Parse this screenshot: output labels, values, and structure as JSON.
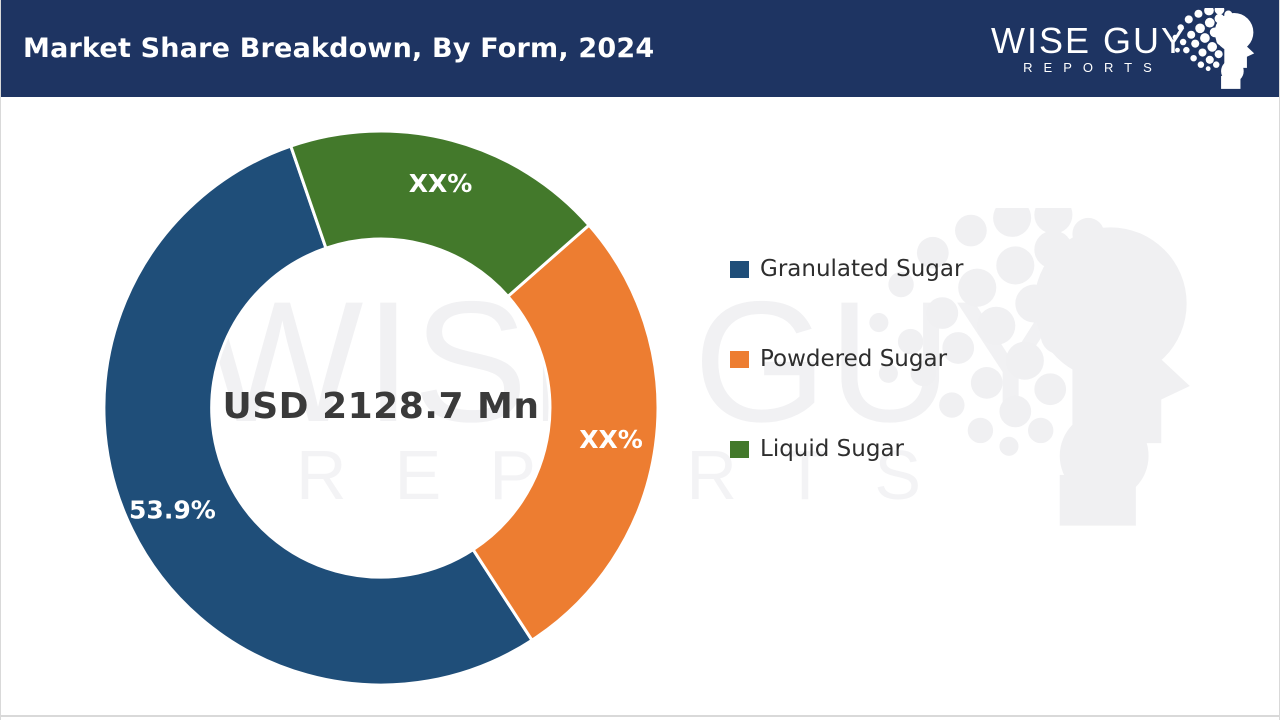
{
  "header": {
    "title": "Market Share Breakdown, By Form, 2024",
    "logo": {
      "line1": "WISE GUY",
      "line2": "REPORTS"
    }
  },
  "watermark": {
    "line1": "WISE GUY",
    "line2": "REPORTS"
  },
  "chart_data": {
    "type": "pie",
    "variant": "donut",
    "title": "Market Share Breakdown, By Form, 2024",
    "center_label": "USD 2128.7 Mn",
    "start_angle_deg": 109,
    "direction": "counterclockwise",
    "inner_radius_ratio": 0.61,
    "label_radius_ratio": 0.838,
    "legend_position": "right",
    "segments": [
      {
        "name": "Granulated Sugar",
        "value": 53.9,
        "label": "53.9%",
        "color": "#1F4E79"
      },
      {
        "name": "Powdered Sugar",
        "value": 27.3,
        "label": "XX%",
        "color": "#ED7D31"
      },
      {
        "name": "Liquid Sugar",
        "value": 18.8,
        "label": "XX%",
        "color": "#43792B"
      }
    ]
  },
  "colors": {
    "header_bg": "#1E3462",
    "page_bg": "#FFFFFF",
    "center_text": "#3A3A3A",
    "legend_text": "#2E2E2E",
    "watermark": "#F1F1F3",
    "frame_line": "#D9D9D9",
    "segment_label_text": "#FFFFFF"
  }
}
